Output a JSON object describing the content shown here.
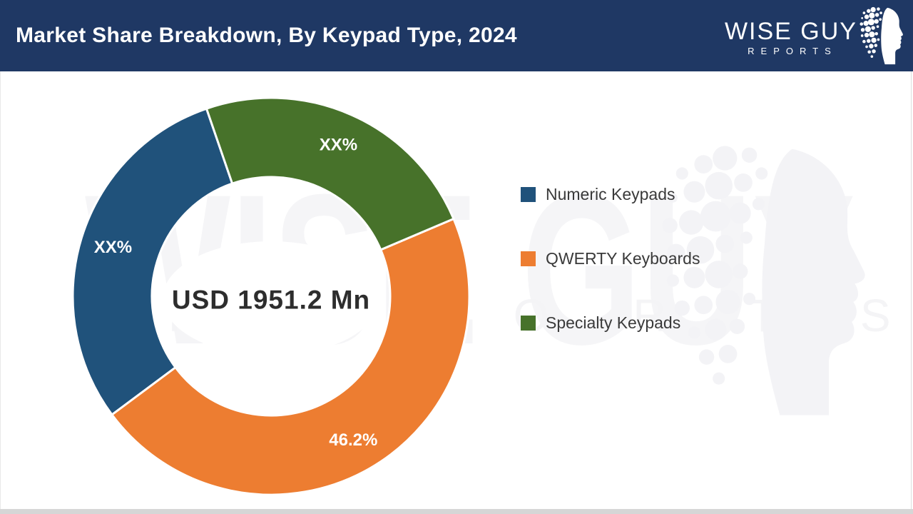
{
  "header": {
    "title": "Market Share Breakdown, By Keypad Type, 2024",
    "logo": {
      "name": "WISE GUY",
      "tagline": "REPORTS"
    }
  },
  "chart_data": {
    "type": "pie",
    "subtype": "donut",
    "title": "Market Share Breakdown, By Keypad Type, 2024",
    "center_label": "USD 1951.2 Mn",
    "hole_ratio": 0.6,
    "start_angle_deg": 109,
    "direction": "counterclockwise",
    "legend_position": "right",
    "segments": [
      {
        "label": "Numeric Keypads",
        "value_pct": 29.9,
        "displayed_label": "XX%",
        "color": "#20527B"
      },
      {
        "label": "QWERTY Keyboards",
        "value_pct": 46.2,
        "displayed_label": "46.2%",
        "color": "#ED7D31"
      },
      {
        "label": "Specialty Keypads",
        "value_pct": 23.9,
        "displayed_label": "XX%",
        "color": "#47722A"
      }
    ]
  },
  "watermark": {
    "line1": "WISE GUY",
    "line2": "R E P O R T S"
  },
  "colors": {
    "header_bg": "#1F3864",
    "legend_text": "#3A3A3A",
    "center_text": "#2D2D2D",
    "slice_label_text": "#FFFFFF",
    "watermark": "#F5F5F7",
    "bottom_bar": "#D6D6D6"
  }
}
